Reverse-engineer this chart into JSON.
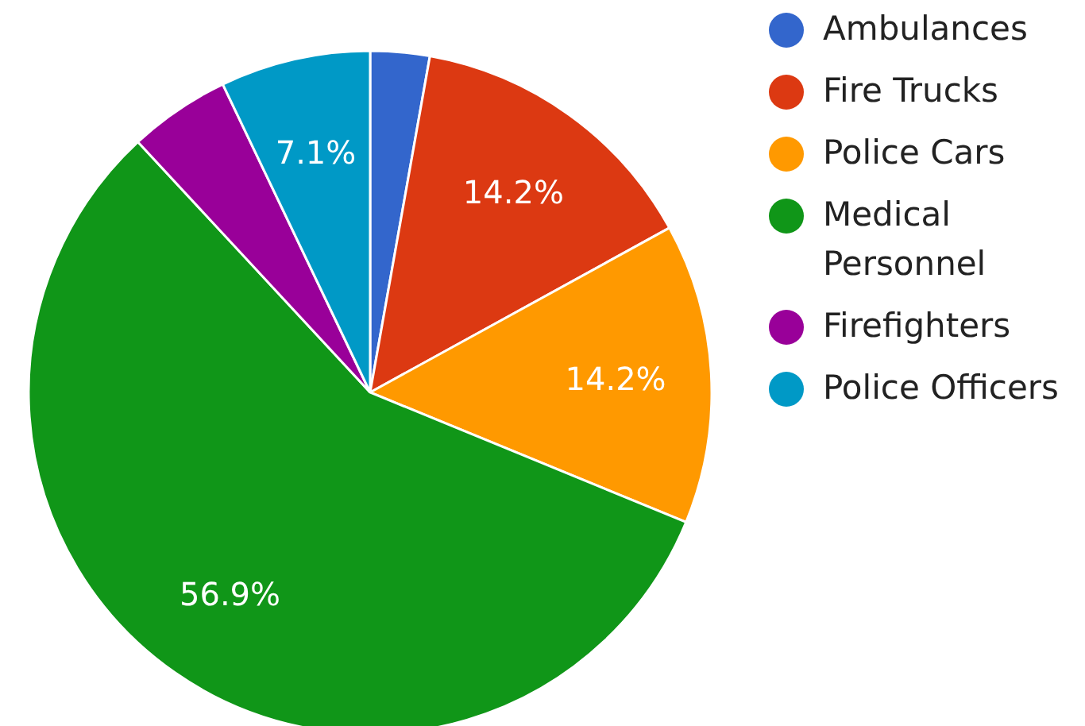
{
  "chart_data": {
    "type": "pie",
    "categories": [
      "Ambulances",
      "Fire Trucks",
      "Police Cars",
      "Medical Personnel",
      "Firefighters",
      "Police Officers"
    ],
    "values": [
      2.8,
      14.2,
      14.2,
      56.9,
      4.8,
      7.1
    ],
    "colors": [
      "#3366cc",
      "#dc3912",
      "#ff9900",
      "#109618",
      "#990099",
      "#0099c6"
    ],
    "value_labels": [
      null,
      "14.2%",
      "14.2%",
      "56.9%",
      null,
      "7.1%"
    ],
    "legend": "top right"
  }
}
